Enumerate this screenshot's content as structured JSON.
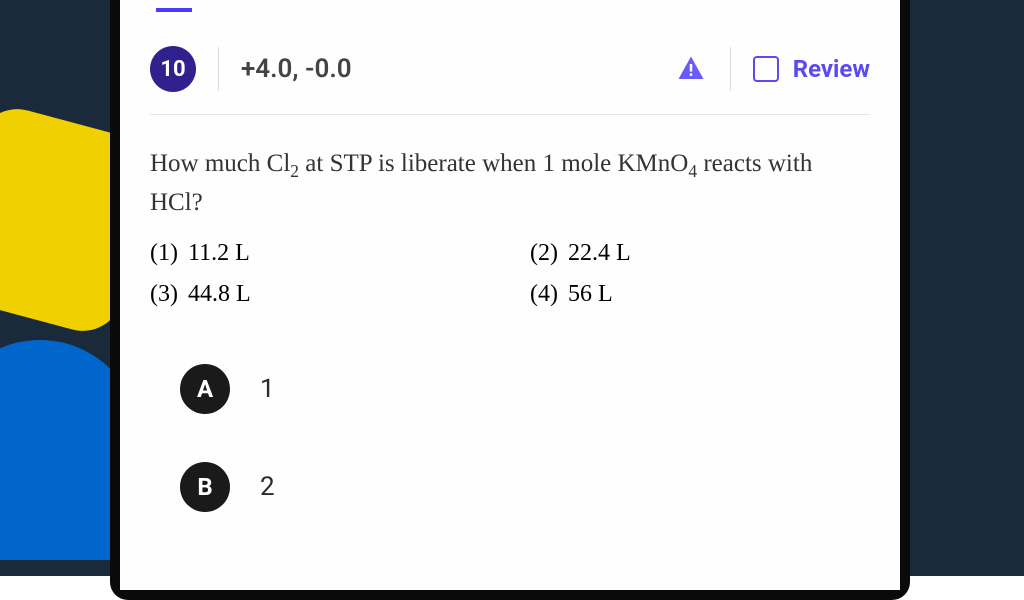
{
  "colors": {
    "accent": "#4a3aff",
    "qnum_bg": "#30218f",
    "qnum_text": "#ffffff",
    "marks_text": "#444444",
    "warn_fill": "#6a5af9",
    "review_text": "#5a4af0",
    "chk_border": "#5a4af0",
    "question_text": "#333333",
    "ans_bg": "#1a1a1a",
    "ans_text": "#ffffff"
  },
  "header": {
    "question_number": "10",
    "marks": "+4.0, -0.0",
    "review_label": "Review"
  },
  "question": {
    "text_html": "How much Cl<sub>2</sub> at STP is liberate when 1 mole KMnO<sub>4</sub> reacts with HCl?"
  },
  "options": [
    {
      "n": "(1)",
      "text": "11.2 L"
    },
    {
      "n": "(2)",
      "text": "22.4 L"
    },
    {
      "n": "(3)",
      "text": "44.8 L"
    },
    {
      "n": "(4)",
      "text": "56 L"
    }
  ],
  "answers": [
    {
      "letter": "A",
      "label": "1"
    },
    {
      "letter": "B",
      "label": "2"
    }
  ]
}
